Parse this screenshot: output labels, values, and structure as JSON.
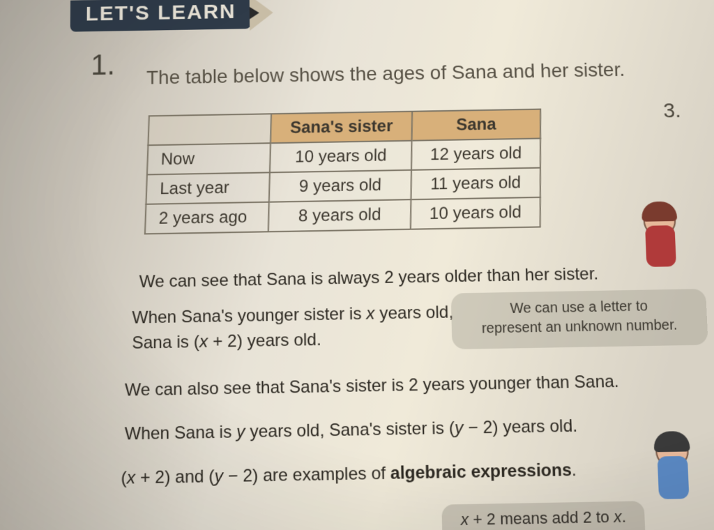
{
  "banner": {
    "label": "LET'S LEARN"
  },
  "question_number": "1.",
  "intro": "The table below shows the ages of Sana and her sister.",
  "side_number": "3.",
  "table": {
    "header_bg": "#d8b07a",
    "columns": [
      "",
      "Sana's sister",
      "Sana"
    ],
    "rows": [
      [
        "Now",
        "10 years old",
        "12 years old"
      ],
      [
        "Last year",
        "9 years old",
        "11 years old"
      ],
      [
        "2 years ago",
        "8 years old",
        "10 years old"
      ]
    ]
  },
  "paragraphs": {
    "p1": "We can see that Sana is always 2 years older than her sister.",
    "p2a": "When Sana's younger sister is ",
    "p2b": "x",
    "p2c": " years old,",
    "p2d": "Sana is (",
    "p2e": "x",
    "p2f": " + 2) years old.",
    "p3": "We can also see that Sana's sister is 2 years younger than Sana.",
    "p4a": "When Sana is ",
    "p4b": "y",
    "p4c": " years old, Sana's sister is (",
    "p4d": "y",
    "p4e": " − 2) years old.",
    "p5a": "(",
    "p5b": "x",
    "p5c": " + 2) and (",
    "p5d": "y",
    "p5e": " − 2) are examples of ",
    "p5f": "algebraic expressions",
    "p5g": "."
  },
  "callout": {
    "line1": "We can use a letter to",
    "line2": "represent an unknown number."
  },
  "footnote": {
    "a": "x",
    "b": " + 2 means add 2 to ",
    "c": "x",
    "d": "."
  }
}
